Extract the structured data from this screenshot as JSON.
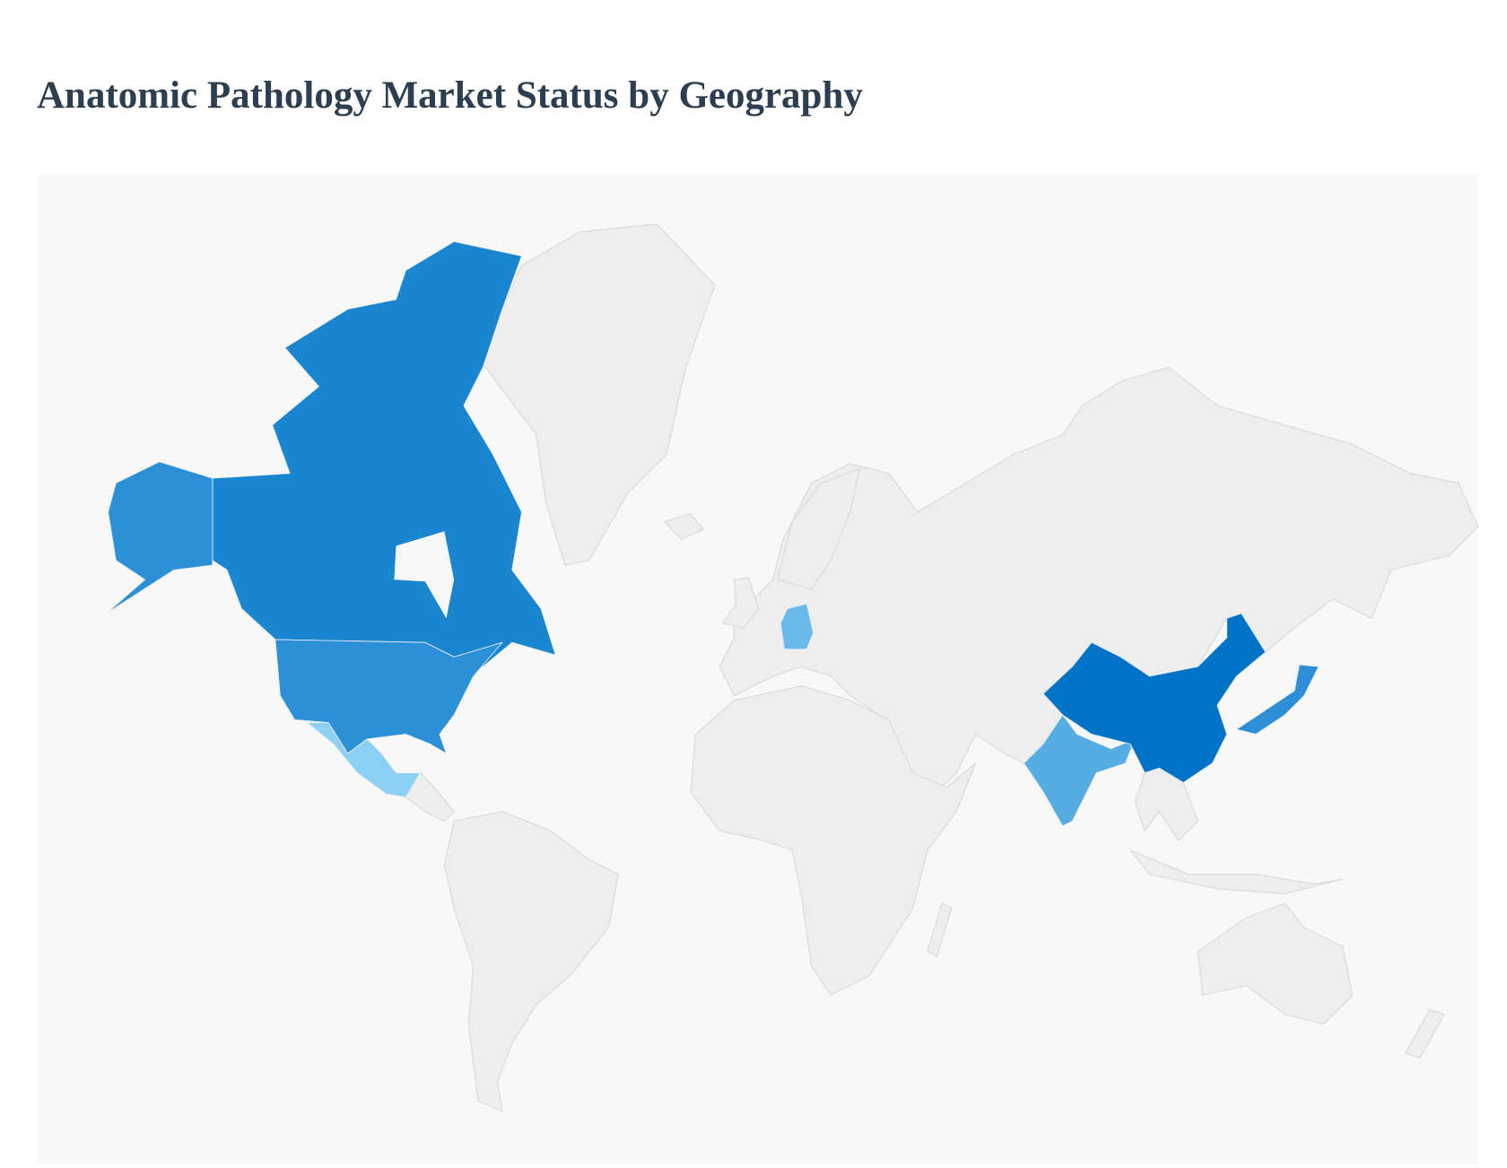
{
  "title": "Anatomic Pathology Market Status by Geography",
  "chart_data": {
    "type": "choropleth",
    "title": "Anatomic Pathology Market Status by Geography",
    "background_color": "#f8f8f8",
    "default_land_color": "#eeeeee",
    "border_color": "#dcdcdc",
    "legend": "none",
    "regions": [
      {
        "id": "china",
        "color": "#0173c7"
      },
      {
        "id": "canada",
        "color": "#1a86d0"
      },
      {
        "id": "alaska",
        "color": "#2b90d6"
      },
      {
        "id": "usa",
        "color": "#2b90d6"
      },
      {
        "id": "japan",
        "color": "#2e8fd8"
      },
      {
        "id": "india",
        "color": "#56ade4"
      },
      {
        "id": "germany",
        "color": "#6ab9ea"
      },
      {
        "id": "mexico",
        "color": "#8dd0f5"
      }
    ]
  }
}
